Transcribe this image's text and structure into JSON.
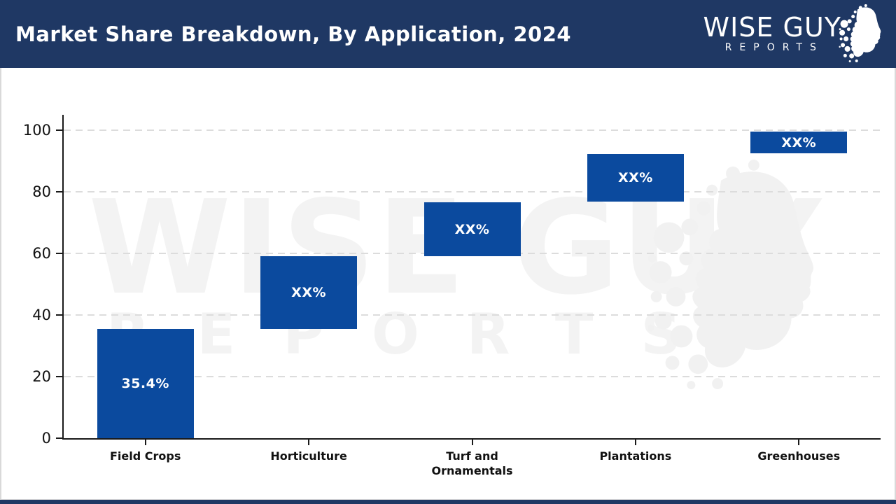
{
  "header": {
    "title": "Market Share Breakdown, By Application, 2024",
    "logo": {
      "line1": "WISE GUY",
      "line2": "REPORTS"
    }
  },
  "watermark": {
    "line1": "WISE GUY",
    "line2": "REPORTS"
  },
  "chart_data": {
    "type": "bar",
    "subtype": "waterfall",
    "title": "Market Share Breakdown, By Application, 2024",
    "xlabel": "",
    "ylabel": "",
    "ylim": [
      0,
      105
    ],
    "yticks": [
      0,
      20,
      40,
      60,
      80,
      100
    ],
    "grid": "horizontal-dashed",
    "legend": "none",
    "bar_color": "#0b4a9e",
    "label_color": "#ffffff",
    "categories": [
      "Field Crops",
      "Horticulture",
      "Turf and Ornamentals",
      "Plantations",
      "Greenhouses"
    ],
    "segments": [
      {
        "category": "Field Crops",
        "start": 0,
        "end": 35.4,
        "label": "35.4%"
      },
      {
        "category": "Horticulture",
        "start": 35.4,
        "end": 59.0,
        "label": "XX%"
      },
      {
        "category": "Turf and Ornamentals",
        "start": 59.0,
        "end": 76.5,
        "label": "XX%"
      },
      {
        "category": "Plantations",
        "start": 76.9,
        "end": 92.3,
        "label": "XX%"
      },
      {
        "category": "Greenhouses",
        "start": 92.5,
        "end": 99.5,
        "label": "XX%"
      }
    ]
  },
  "colors": {
    "header_bg": "#1f3864",
    "footer_bg": "#1f3864",
    "bar": "#0b4a9e",
    "grid": "#dcdcdc",
    "axis": "#1a1a1a",
    "watermark": "#f3f3f3"
  }
}
